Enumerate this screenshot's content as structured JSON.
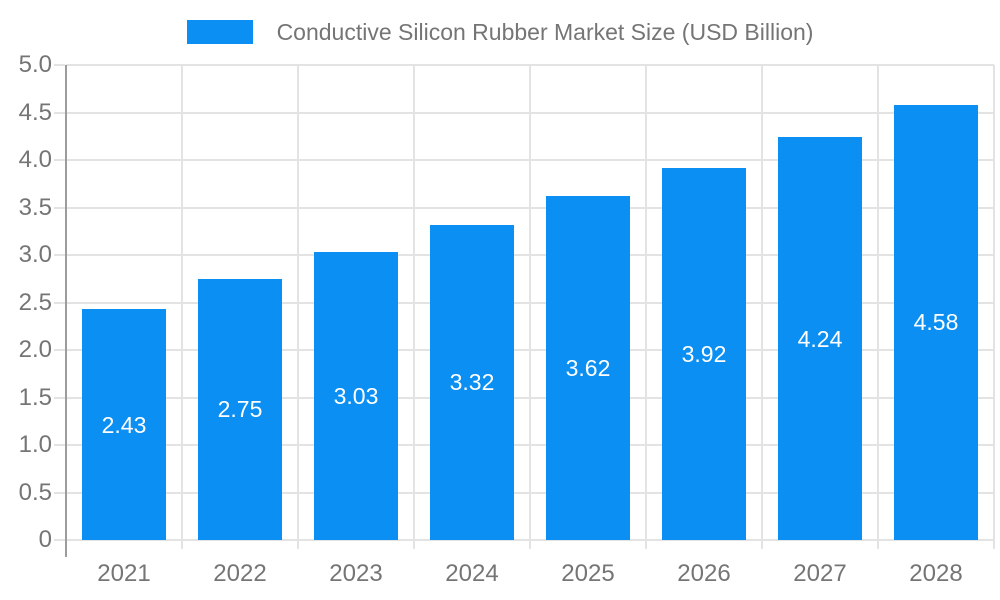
{
  "chart_data": {
    "type": "bar",
    "title": "Conductive Silicon Rubber Market Size (USD Billion)",
    "legend_position": "top",
    "categories": [
      "2021",
      "2022",
      "2023",
      "2024",
      "2025",
      "2026",
      "2027",
      "2028"
    ],
    "values": [
      2.43,
      2.75,
      3.03,
      3.32,
      3.62,
      3.92,
      4.24,
      4.58
    ],
    "value_labels": [
      "2.43",
      "2.75",
      "3.03",
      "3.32",
      "3.62",
      "3.92",
      "4.24",
      "4.58"
    ],
    "xlabel": "",
    "ylabel": "",
    "ylim": [
      0,
      5
    ],
    "ytick_step": 0.5,
    "ytick_labels": [
      "0",
      "0.5",
      "1.0",
      "1.5",
      "2.0",
      "2.5",
      "3.0",
      "3.5",
      "4.0",
      "4.5",
      "5.0"
    ],
    "grid": true,
    "colors": {
      "bar": "#0b8ff2",
      "grid_line": "#e3e3e3",
      "axis_line": "#9c9c9c",
      "tick_text": "#757575",
      "value_label_text": "#ffffff",
      "background": "#ffffff"
    }
  }
}
